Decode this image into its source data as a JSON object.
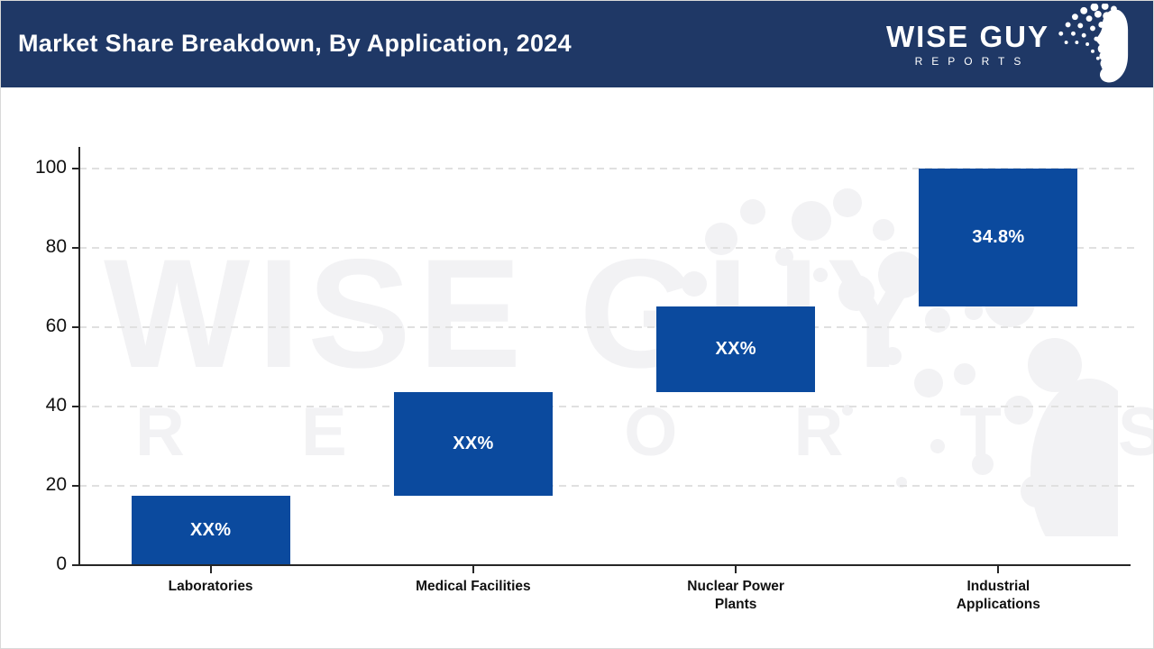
{
  "header": {
    "title": "Market Share Breakdown, By Application, 2024",
    "logo": {
      "line1": "WISE GUY",
      "line2": "REPORTS"
    }
  },
  "watermark": {
    "line1": "WISE GUY",
    "line2": "R E P O R T S"
  },
  "colors": {
    "header_bg": "#1f3866",
    "bar_fill": "#0b4a9e",
    "bar_label_text": "#ffffff",
    "axis": "#262626",
    "gridline": "#e0e0e0",
    "tick_text": "#111111",
    "watermark": "#f2f2f4",
    "page_border": "#d9d9d9"
  },
  "chart_data": {
    "type": "bar",
    "subtype": "floating-waterfall",
    "title": "Market Share Breakdown, By Application, 2024",
    "xlabel": "",
    "ylabel": "",
    "ylim": [
      0,
      100
    ],
    "yticks": [
      0,
      20,
      40,
      60,
      80,
      100
    ],
    "grid": "horizontal dashed",
    "legend": "none",
    "categories": [
      "Laboratories",
      "Medical Facilities",
      "Nuclear Power Plants",
      "Industrial Applications"
    ],
    "category_display": [
      [
        "Laboratories"
      ],
      [
        "Medical Facilities"
      ],
      [
        "Nuclear Power",
        "Plants"
      ],
      [
        "Industrial",
        "Applications"
      ]
    ],
    "bars": [
      {
        "category": "Laboratories",
        "start": 0,
        "end": 17.5,
        "value": 17.5,
        "label": "XX%"
      },
      {
        "category": "Medical Facilities",
        "start": 17.5,
        "end": 43.6,
        "value": 26.1,
        "label": "XX%"
      },
      {
        "category": "Nuclear Power Plants",
        "start": 43.6,
        "end": 65.2,
        "value": 21.6,
        "label": "XX%"
      },
      {
        "category": "Industrial Applications",
        "start": 65.2,
        "end": 100,
        "value": 34.8,
        "label": "34.8%"
      }
    ]
  }
}
